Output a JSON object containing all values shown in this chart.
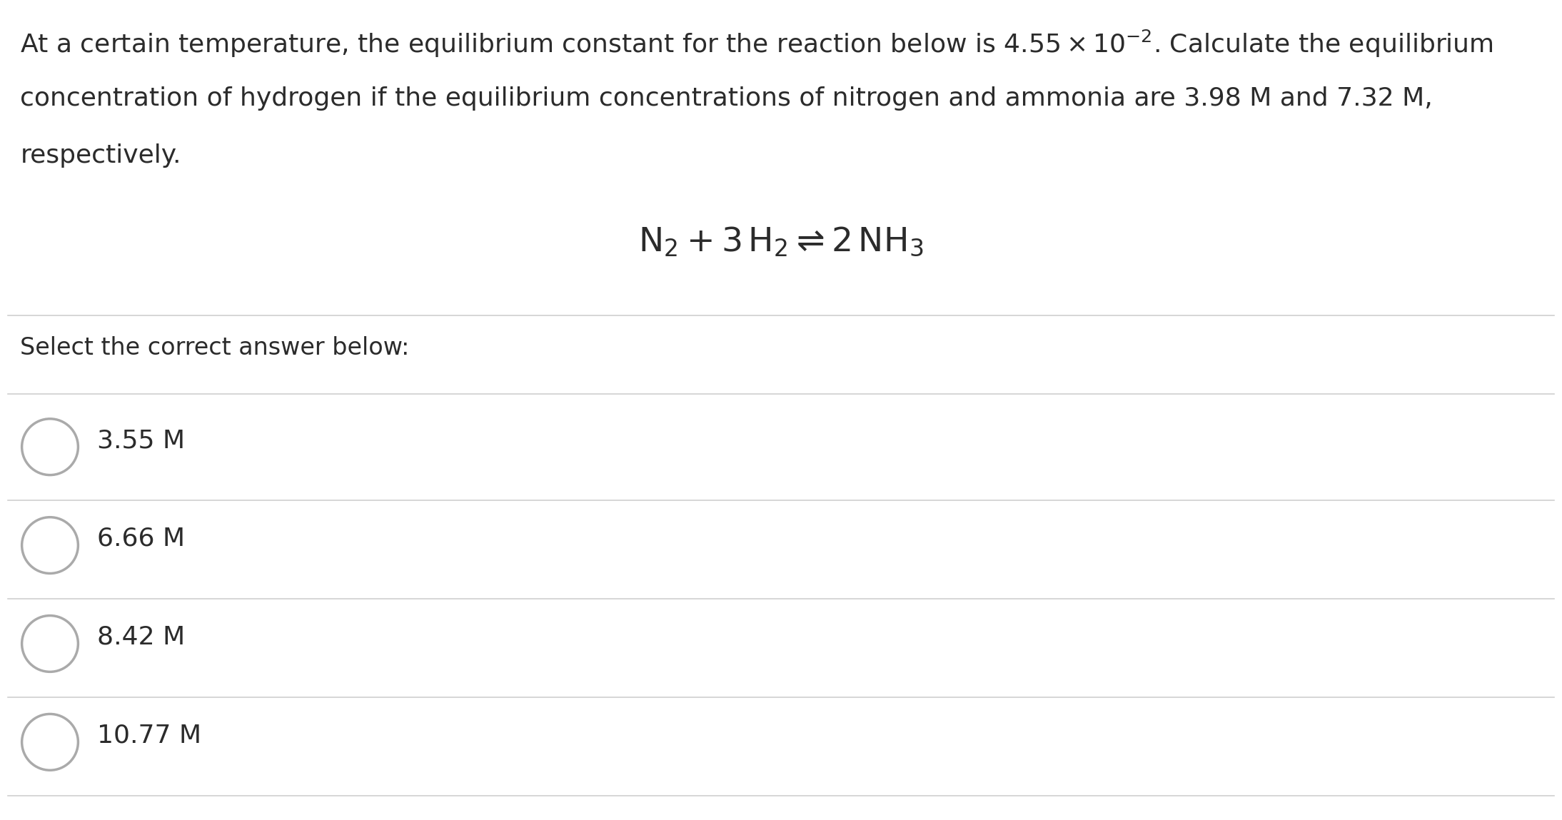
{
  "background_color": "#ffffff",
  "text_color": "#2b2b2b",
  "line_color": "#d0d0d0",
  "question_text_line1": "At a certain temperature, the equilibrium constant for the reaction below is $4.55 \\times 10^{-2}$. Calculate the equilibrium",
  "question_text_line2": "concentration of hydrogen if the equilibrium concentrations of nitrogen and ammonia are 3.98 M and 7.32 M,",
  "question_text_line3": "respectively.",
  "reaction_text": "$\\mathrm{N_2 + 3\\,H_2 \\rightleftharpoons 2\\,NH_3}$",
  "select_text": "Select the correct answer below:",
  "choices": [
    "3.55 M",
    "6.66 M",
    "8.42 M",
    "10.77 M"
  ],
  "font_size_question": 26,
  "font_size_reaction": 34,
  "font_size_select": 24,
  "font_size_choices": 26,
  "figsize": [
    21.88,
    11.49
  ],
  "dpi": 100
}
